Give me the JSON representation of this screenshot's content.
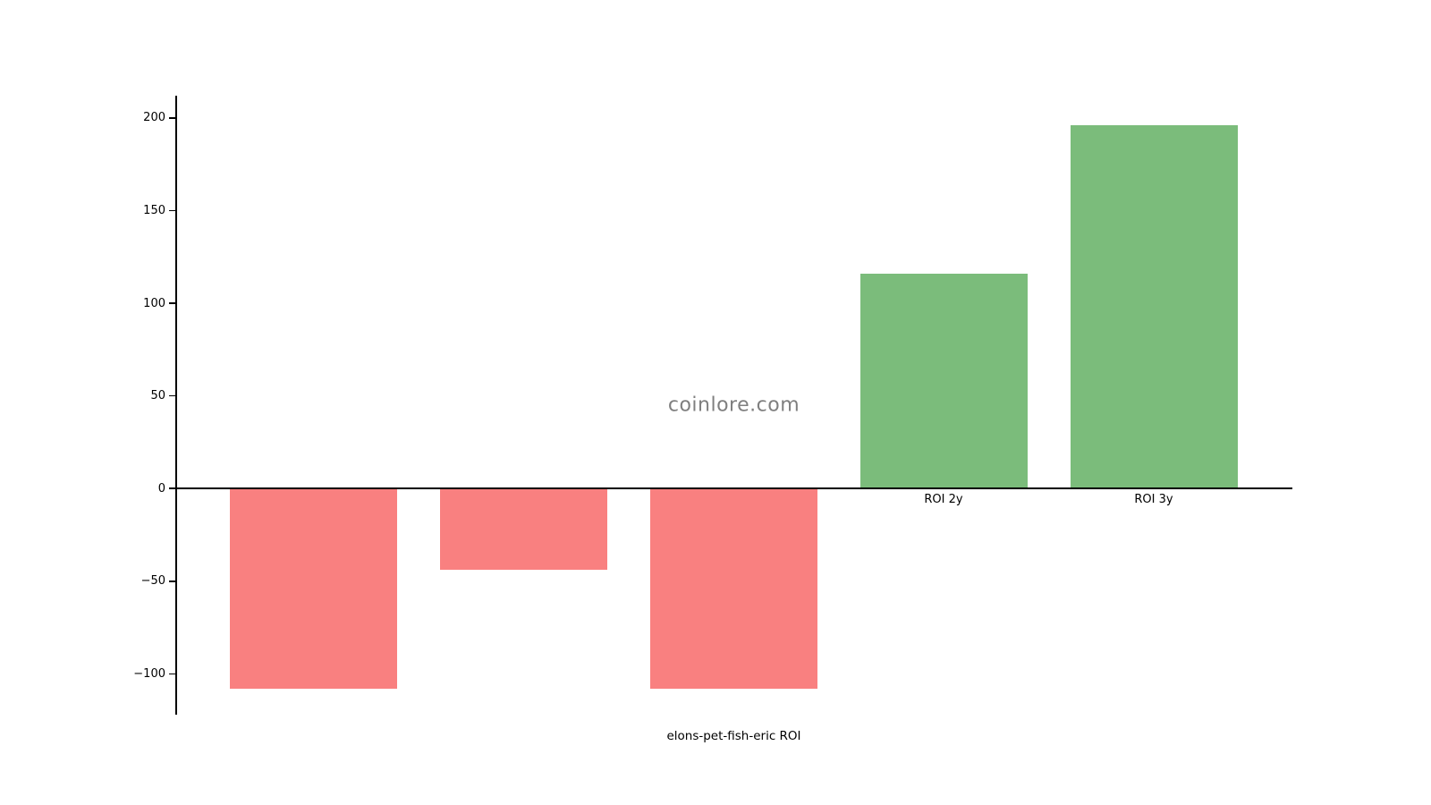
{
  "watermark": {
    "text": "coinlore.com",
    "color": "#7f7f7f"
  },
  "chart_data": {
    "type": "bar",
    "title": "elons-pet-fish-eric ROI",
    "categories": [
      "",
      "",
      "",
      "ROI 2y",
      "ROI 3y"
    ],
    "values": [
      -108,
      -44,
      -108,
      116,
      196
    ],
    "yticks": [
      200,
      150,
      100,
      50,
      0,
      -50,
      -100
    ],
    "ylim": [
      -122,
      212
    ],
    "xlabel": "",
    "ylabel": "",
    "grid": false,
    "legend_position": "none",
    "bar_color_positive": "#7bbc7b",
    "bar_color_negative": "#f98080",
    "axis_color": "#000000"
  }
}
